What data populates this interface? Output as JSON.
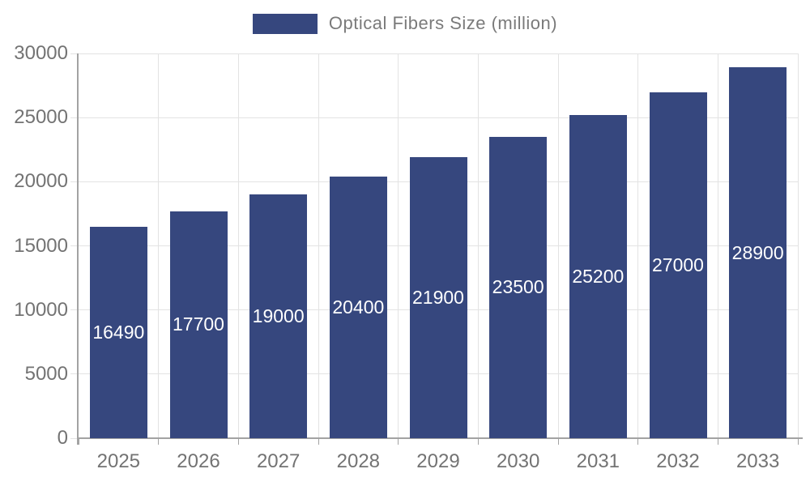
{
  "chart_data": {
    "type": "bar",
    "title": "",
    "series_name": "Optical Fibers Size (million)",
    "categories": [
      "2025",
      "2026",
      "2027",
      "2028",
      "2029",
      "2030",
      "2031",
      "2032",
      "2033"
    ],
    "values": [
      16490,
      17700,
      19000,
      20400,
      21900,
      23500,
      25200,
      27000,
      28900
    ],
    "xlabel": "",
    "ylabel": "",
    "ylim": [
      0,
      30000
    ],
    "yticks": [
      0,
      5000,
      10000,
      15000,
      20000,
      25000,
      30000
    ],
    "grid": true,
    "legend_position": "top",
    "colors": {
      "bar": "#36477E",
      "value_label": "#FFFFFF",
      "axis_tick_label": "#737373",
      "legend_text": "#7A7A7A",
      "gridline": "#E3E3E3",
      "axis_line": "#A3A3A3",
      "background": "#FFFFFF"
    }
  }
}
